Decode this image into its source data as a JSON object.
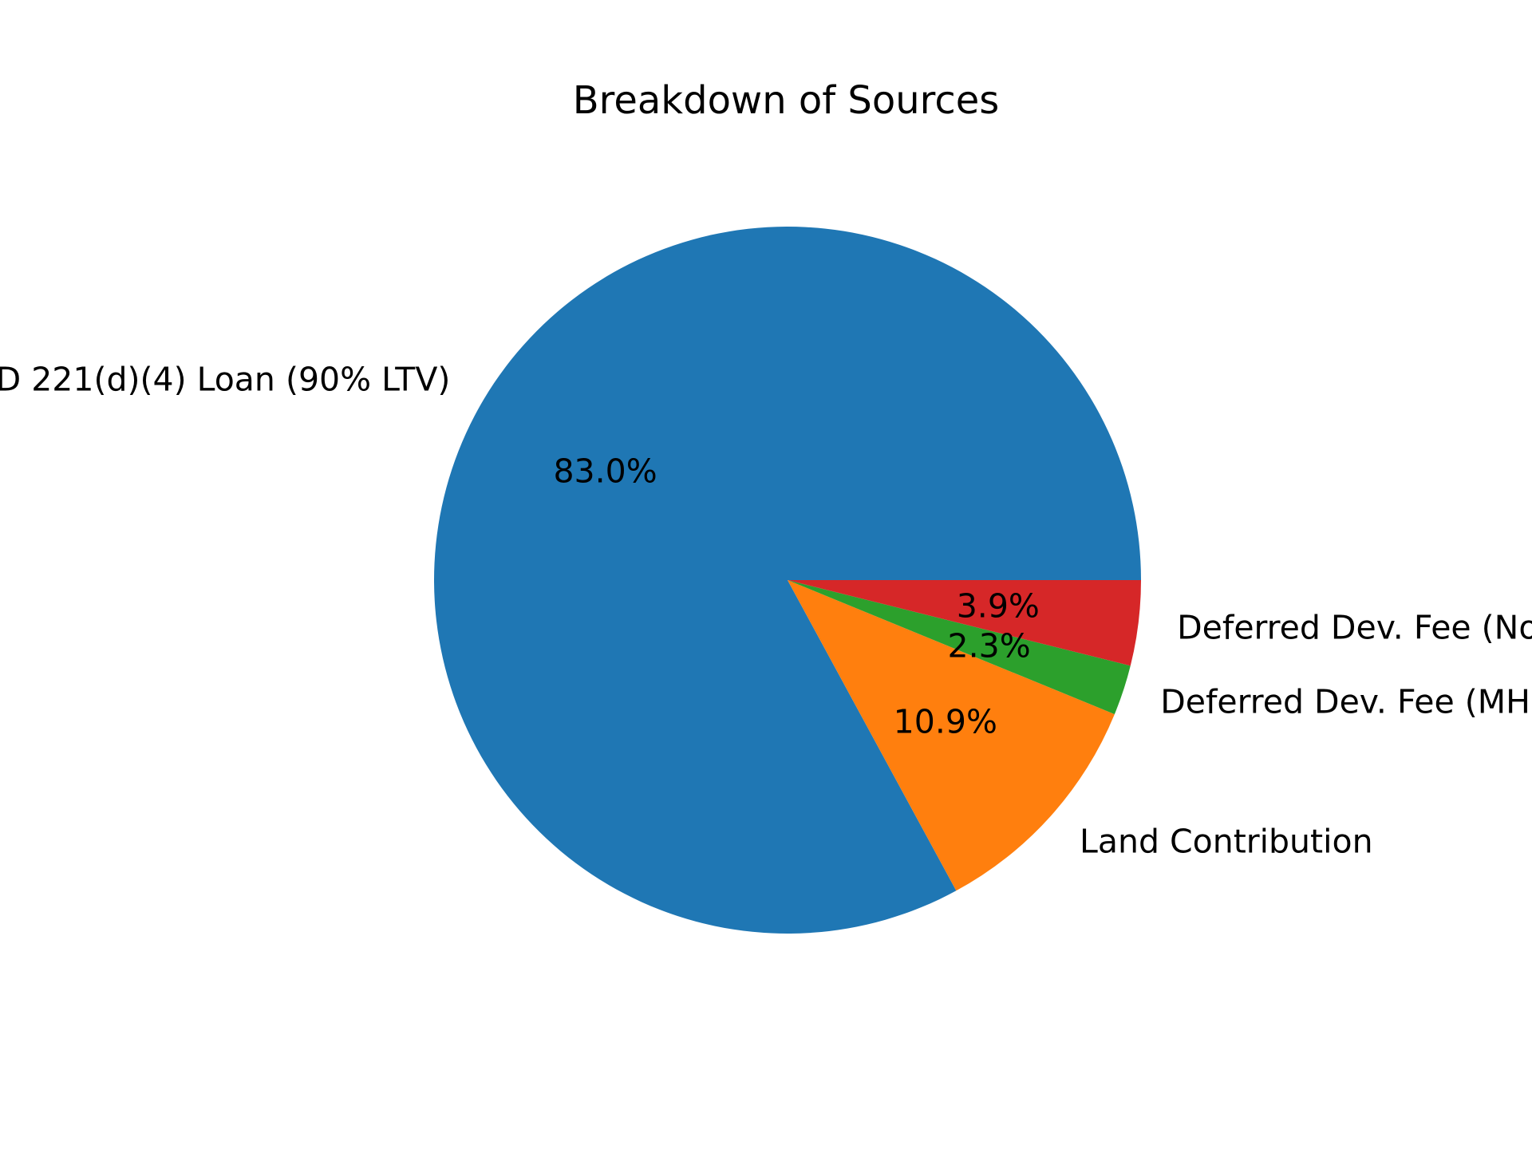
{
  "chart_data": {
    "type": "pie",
    "title": "Breakdown of Sources",
    "slices": [
      {
        "label": "D 221(d)(4) Loan (90% LTV)",
        "pct_label": "83.0%",
        "value": 83.0,
        "color": "#1f77b4"
      },
      {
        "label": "Land Contribution",
        "pct_label": "10.9%",
        "value": 10.9,
        "color": "#ff7f0e"
      },
      {
        "label": "Deferred Dev. Fee (MH",
        "pct_label": "2.3%",
        "value": 2.3,
        "color": "#2ca02c"
      },
      {
        "label": "Deferred Dev. Fee (No",
        "pct_label": "3.9%",
        "value": 3.9,
        "color": "#d62728"
      }
    ],
    "start_angle_deg": 0,
    "direction": "counterclockwise",
    "label_distance": 1.11,
    "pct_distance": 0.6,
    "legend": "none",
    "background": "#ffffff",
    "text_color": "#000000"
  }
}
